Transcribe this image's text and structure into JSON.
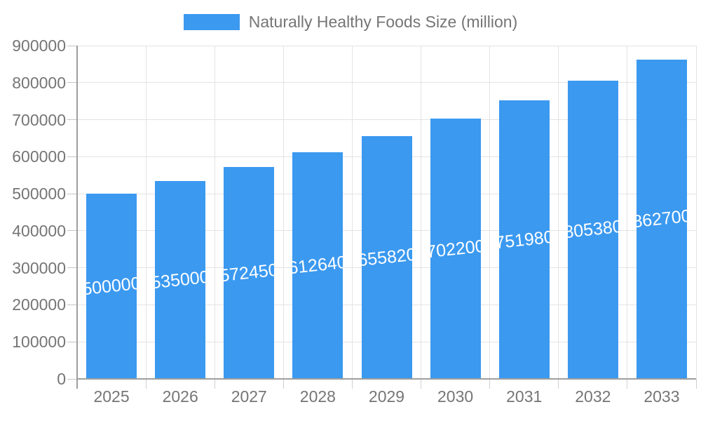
{
  "legend": {
    "label": "Naturally Healthy Foods Size (million)",
    "color": "#3B99F0"
  },
  "chart_data": {
    "type": "bar",
    "title": "",
    "categories": [
      "2025",
      "2026",
      "2027",
      "2028",
      "2029",
      "2030",
      "2031",
      "2032",
      "2033"
    ],
    "series": [
      {
        "name": "Naturally Healthy Foods Size (million)",
        "values": [
          500000,
          535000,
          572450,
          612640,
          655820,
          702200,
          751980,
          805380,
          862700
        ]
      }
    ],
    "xlabel": "",
    "ylabel": "",
    "ylim": [
      0,
      900000
    ],
    "ytick_step": 100000,
    "ytick_labels": [
      "0",
      "100000",
      "200000",
      "300000",
      "400000",
      "500000",
      "600000",
      "700000",
      "800000",
      "900000"
    ],
    "grid": true,
    "legend_position": "top",
    "bar_color": "#3B99F0",
    "value_label_color": "#FFFFFF",
    "axis_text_color": "#757575",
    "grid_color": "#E3E3E3",
    "axis_line_color": "#9E9E9E"
  }
}
